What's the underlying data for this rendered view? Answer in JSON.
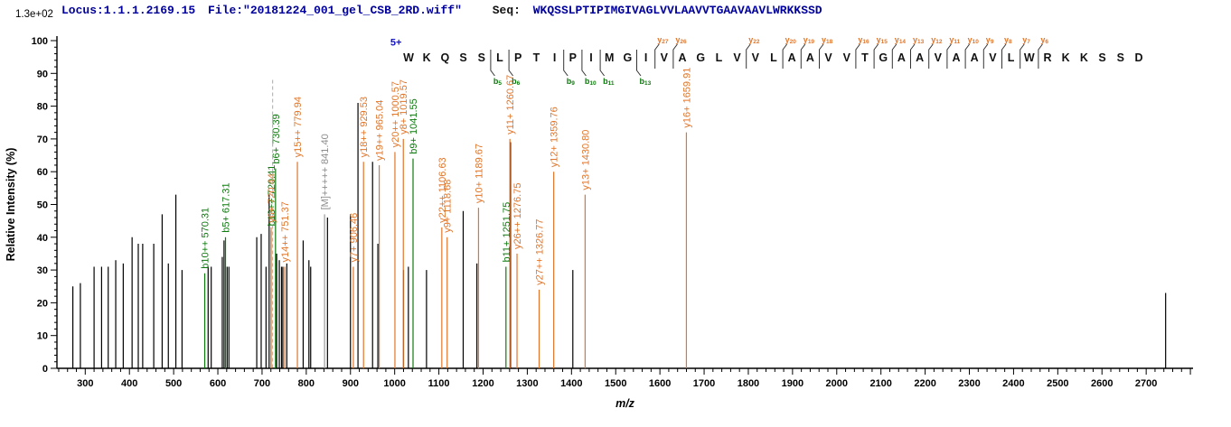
{
  "header": {
    "locus": "Locus:1.1.1.2169.15",
    "file": "File:\"20181224_001_gel_CSB_2RD.wiff\"",
    "seq_label": "Seq:",
    "sequence": "WKQSSLPTIPIMGIVAGLVVLAAVVTGAAVAAVLWRKKSSD"
  },
  "colors": {
    "b_ion": "#0e7a0e",
    "y_ion": "#e0762b",
    "precursor_label": "#8c8c8c",
    "unassigned_peak": "#000000",
    "axis": "#000000",
    "header_text": "#00009c",
    "charge_label": "#1414cc",
    "sequence_letter": "#111111",
    "marker_line": "#333333"
  },
  "chart_data": {
    "type": "bar",
    "subtype": "ms2-stick-spectrum",
    "title": "",
    "xlabel": "m/z",
    "ylabel": "Relative  Intensity (%)",
    "y_scale_note": "1.3e+02",
    "xlim": [
      236,
      2806
    ],
    "ylim": [
      0,
      100
    ],
    "x_axis": {
      "first_label": 300,
      "last_label": 2700,
      "major_tick_step": 100,
      "minor_tick_step": 20
    },
    "y_axis": {
      "major_tick_step": 10,
      "minor_tick_step": 2
    },
    "grid": false,
    "unassigned_peaks": [
      [
        272,
        25
      ],
      [
        289,
        26
      ],
      [
        320,
        31
      ],
      [
        337,
        31
      ],
      [
        352,
        31
      ],
      [
        369,
        33
      ],
      [
        386,
        32
      ],
      [
        406,
        40
      ],
      [
        420,
        38
      ],
      [
        430,
        38
      ],
      [
        455,
        38
      ],
      [
        474,
        47
      ],
      [
        488,
        32
      ],
      [
        505,
        53
      ],
      [
        519,
        30
      ],
      [
        578,
        31
      ],
      [
        585,
        31
      ],
      [
        610,
        34
      ],
      [
        614,
        39
      ],
      [
        621,
        31
      ],
      [
        625,
        31
      ],
      [
        688,
        40
      ],
      [
        698,
        41
      ],
      [
        709,
        31
      ],
      [
        716,
        53
      ],
      [
        733,
        35
      ],
      [
        739,
        33
      ],
      [
        744,
        31
      ],
      [
        747,
        31
      ],
      [
        756,
        32
      ],
      [
        793,
        39
      ],
      [
        806,
        33
      ],
      [
        810,
        31
      ],
      [
        848,
        46
      ],
      [
        900,
        47
      ],
      [
        917,
        81
      ],
      [
        950,
        63
      ],
      [
        962,
        38
      ],
      [
        1020,
        30
      ],
      [
        1031,
        31
      ],
      [
        1072,
        30
      ],
      [
        1155,
        48
      ],
      [
        1186,
        32
      ],
      [
        1262,
        69
      ],
      [
        1403,
        30
      ],
      [
        2744,
        23
      ]
    ],
    "annotated_peaks": [
      {
        "mz": 570.31,
        "pct": 29,
        "ion": "b",
        "label": "b10++ 570.31"
      },
      {
        "mz": 617.31,
        "pct": 40,
        "ion": "b",
        "label": "b5+ 617.31"
      },
      {
        "mz": 720.41,
        "pct": 42,
        "ion": "b",
        "label": "b13++ 720.41"
      },
      {
        "mz": 730.39,
        "pct": 61,
        "ion": "b",
        "label": "b6+ 730.39"
      },
      {
        "mz": 1041.55,
        "pct": 64,
        "ion": "b",
        "label": "b9+ 1041.55"
      },
      {
        "mz": 1251.75,
        "pct": 31,
        "ion": "b",
        "label": "b11+ 1251.75"
      },
      {
        "mz": 720.44,
        "pct": 43,
        "ion": "y",
        "label": "y6+ 720.44"
      },
      {
        "mz": 751.37,
        "pct": 31,
        "ion": "y",
        "label": "y14++ 751.37"
      },
      {
        "mz": 779.94,
        "pct": 63,
        "ion": "y",
        "label": "y15++ 779.94"
      },
      {
        "mz": 906.46,
        "pct": 31,
        "ion": "y",
        "label": "y7+ 906.46"
      },
      {
        "mz": 929.53,
        "pct": 63,
        "ion": "y",
        "label": "y18++ 929.53"
      },
      {
        "mz": 965.04,
        "pct": 62,
        "ion": "y",
        "label": "y19++ 965.04"
      },
      {
        "mz": 1000.57,
        "pct": 66,
        "ion": "y",
        "label": "y20++ 1000.57"
      },
      {
        "mz": 1019.57,
        "pct": 70,
        "ion": "y",
        "label": "y8+ 1019.57"
      },
      {
        "mz": 1106.63,
        "pct": 43,
        "ion": "y",
        "label": "y22++ 1106.63"
      },
      {
        "mz": 1118.68,
        "pct": 40,
        "ion": "y",
        "label": "y9+ 1118.68"
      },
      {
        "mz": 1189.67,
        "pct": 49,
        "ion": "y",
        "label": "y10+ 1189.67"
      },
      {
        "mz": 1260.67,
        "pct": 70,
        "ion": "y",
        "label": "y11+ 1260.67"
      },
      {
        "mz": 1276.75,
        "pct": 35,
        "ion": "y",
        "label": "y26++ 1276.75"
      },
      {
        "mz": 1326.77,
        "pct": 24,
        "ion": "y",
        "label": "y27++ 1326.77"
      },
      {
        "mz": 1359.76,
        "pct": 60,
        "ion": "y",
        "label": "y12+ 1359.76"
      },
      {
        "mz": 1430.8,
        "pct": 53,
        "ion": "y",
        "label": "y13+ 1430.80"
      },
      {
        "mz": 1659.91,
        "pct": 72,
        "ion": "y",
        "label": "y16+ 1659.91"
      },
      {
        "mz": 841.4,
        "pct": 47,
        "ion": "M",
        "label": "[M]+++++ 841.40"
      }
    ],
    "annotations": [
      {
        "kind": "charge-state",
        "text": "5+",
        "mz": 1003,
        "pct": 98.5
      },
      {
        "kind": "dashed-line",
        "mz": 724,
        "pct": 88
      }
    ],
    "sequence_display": {
      "sequence": "WKQSSLPTIPIMGIVAGLVVLAAVVTGAAVAAVLWRKKSSD",
      "y_ion_markers": [
        {
          "label": "y27",
          "boundary": 14
        },
        {
          "label": "y26",
          "boundary": 15
        },
        {
          "label": "y22",
          "boundary": 19
        },
        {
          "label": "y20",
          "boundary": 21
        },
        {
          "label": "y19",
          "boundary": 22
        },
        {
          "label": "y18",
          "boundary": 23
        },
        {
          "label": "y16",
          "boundary": 25
        },
        {
          "label": "y15",
          "boundary": 26
        },
        {
          "label": "y14",
          "boundary": 27
        },
        {
          "label": "y13",
          "boundary": 28
        },
        {
          "label": "y12",
          "boundary": 29
        },
        {
          "label": "y11",
          "boundary": 30
        },
        {
          "label": "y10",
          "boundary": 31
        },
        {
          "label": "y9",
          "boundary": 32
        },
        {
          "label": "y8",
          "boundary": 33
        },
        {
          "label": "y7",
          "boundary": 34
        },
        {
          "label": "y6",
          "boundary": 35
        }
      ],
      "b_ion_markers": [
        {
          "label": "b5",
          "boundary": 5
        },
        {
          "label": "b6",
          "boundary": 6
        },
        {
          "label": "b9",
          "boundary": 9
        },
        {
          "label": "b10",
          "boundary": 10
        },
        {
          "label": "b11",
          "boundary": 11
        },
        {
          "label": "b13",
          "boundary": 13
        }
      ]
    }
  }
}
